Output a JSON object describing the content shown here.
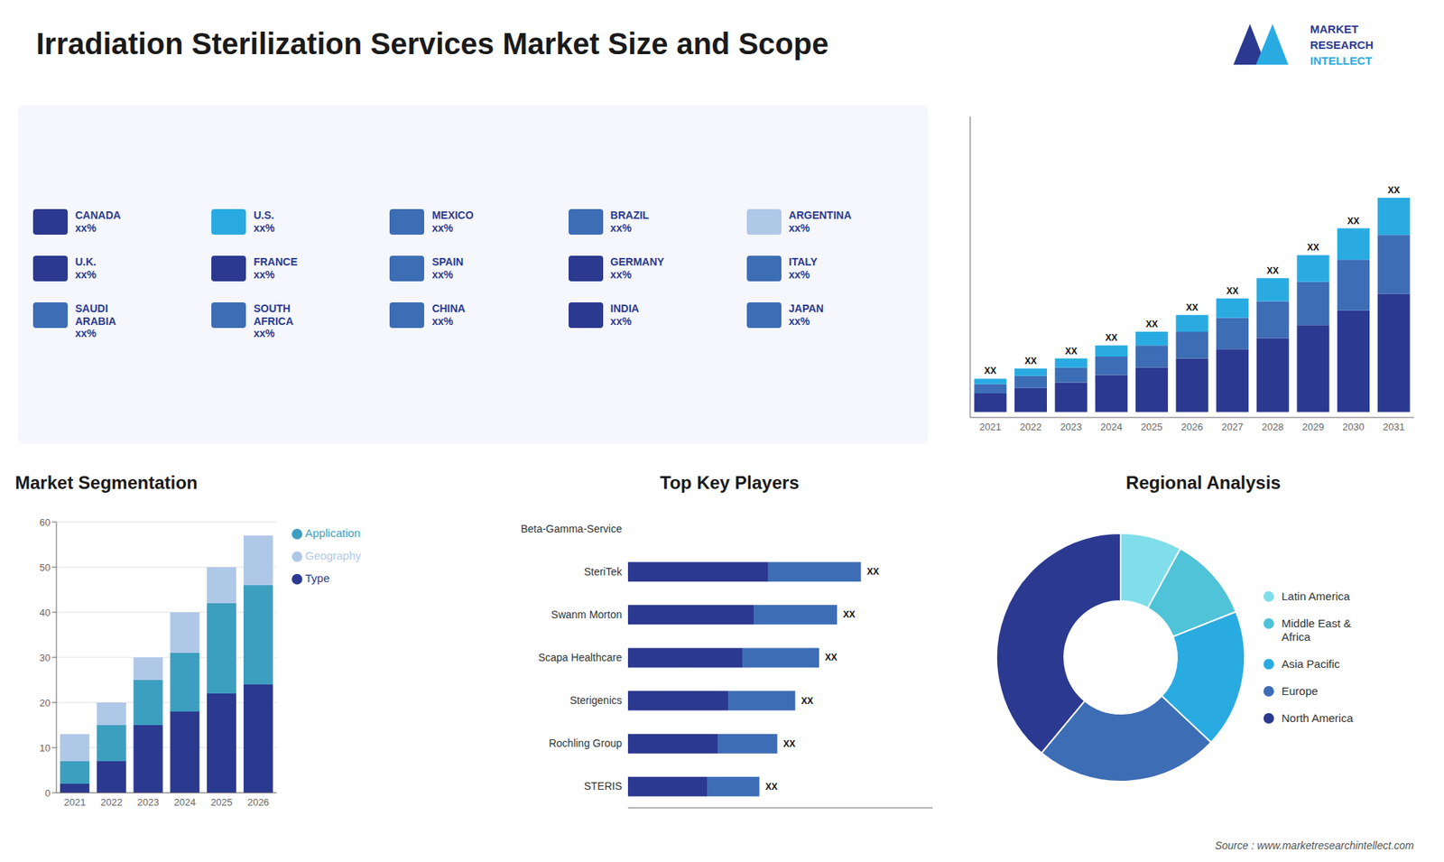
{
  "title": "Irradiation Sterilization Services Market Size and Scope",
  "annotations": [
    "MARKET",
    "RESEARCH",
    "INTELLECT",
    "Source : www.marketresearchintellect.com"
  ],
  "chart_data": [
    {
      "type": "map",
      "categories": [
        "CANADA\nxx%",
        "U.S.\nxx%",
        "MEXICO\nxx%",
        "BRAZIL\nxx%",
        "ARGENTINA\nxx%",
        "U.K.\nxx%",
        "FRANCE\nxx%",
        "SPAIN\nxx%",
        "GERMANY\nxx%",
        "ITALY\nxx%",
        "SAUDI\nARABIA\nxx%",
        "SOUTH\nAFRICA\nxx%",
        "CHINA\nxx%",
        "INDIA\nxx%",
        "JAPAN\nxx%"
      ],
      "colors": [
        "#2b3990",
        "#29abe2",
        "#3d6db5",
        "#3d6db5",
        "#b0c8e8",
        "#2b3990",
        "#2b3990",
        "#3d6db5",
        "#2b3990",
        "#3d6db5",
        "#3d6db5",
        "#3d6db5",
        "#3d6db5",
        "#2b3990",
        "#3d6db5"
      ]
    },
    {
      "type": "bar",
      "stacked": true,
      "categories": [
        "2021",
        "2022",
        "2023",
        "2024",
        "2025",
        "2026",
        "2027",
        "2028",
        "2029",
        "2030",
        "2031"
      ],
      "series": [
        {
          "color": "#2b3990",
          "values": [
            1.0,
            1.3,
            1.6,
            2.0,
            2.4,
            2.9,
            3.4,
            4.0,
            4.7,
            5.5,
            6.4
          ]
        },
        {
          "color": "#3d6db5",
          "values": [
            0.5,
            0.65,
            0.8,
            1.0,
            1.2,
            1.45,
            1.7,
            2.0,
            2.35,
            2.75,
            3.2
          ]
        },
        {
          "color": "#29abe2",
          "values": [
            0.3,
            0.4,
            0.5,
            0.6,
            0.75,
            0.9,
            1.05,
            1.25,
            1.45,
            1.7,
            2.0
          ],
          "value_labels": [
            "XX",
            "XX",
            "XX",
            "XX",
            "XX",
            "XX",
            "XX",
            "XX",
            "XX",
            "XX",
            "XX"
          ]
        }
      ],
      "ylim": [
        -0.3,
        16.008
      ],
      "tick_labels": "x"
    },
    {
      "type": "bar",
      "title": "Market Segmentation",
      "stacked": true,
      "categories": [
        "2021",
        "2022",
        "2023",
        "2024",
        "2025",
        "2026"
      ],
      "series": [
        {
          "name": "Type",
          "color": "#2b3990",
          "values": [
            2,
            7,
            15,
            18,
            22,
            24
          ]
        },
        {
          "name": "Application",
          "color": "#3d9fbf",
          "values": [
            5,
            8,
            10,
            13,
            20,
            22
          ]
        },
        {
          "name": "Geography",
          "color": "#b0c8e8",
          "values": [
            6,
            5,
            5,
            9,
            8,
            11
          ]
        }
      ],
      "ylim": [
        0,
        60
      ],
      "yticks": [
        0,
        10,
        20,
        30,
        40,
        50,
        60
      ],
      "grid": true,
      "legend": "right"
    },
    {
      "type": "bar",
      "title": "Top Key Players",
      "orientation": "horizontal",
      "categories": [
        "Beta-Gamma-Service",
        "SteriTek",
        "Swanm Morton",
        "Scapa Healthcare",
        "Sterigenics",
        "Rochling Group",
        "STERIS"
      ],
      "values": [
        0,
        78,
        70,
        64,
        56,
        50,
        44
      ],
      "value_labels": [
        null,
        "XX",
        "XX",
        "XX",
        "XX",
        "XX",
        "XX"
      ],
      "colors": [
        "#2b3990",
        "#3d6db5"
      ],
      "xlim": [
        0,
        102
      ],
      "tick_labels": "y"
    },
    {
      "type": "pie",
      "title": "Regional Analysis",
      "categories": [
        "Latin America",
        "Middle East &\nAfrica",
        "Asia Pacific",
        "Europe",
        "North America"
      ],
      "values": [
        8,
        11,
        18,
        24,
        39
      ],
      "colors": [
        "#80deea",
        "#4fc3d7",
        "#29abe2",
        "#3d6db5",
        "#2b3990"
      ],
      "legend": "right"
    }
  ]
}
